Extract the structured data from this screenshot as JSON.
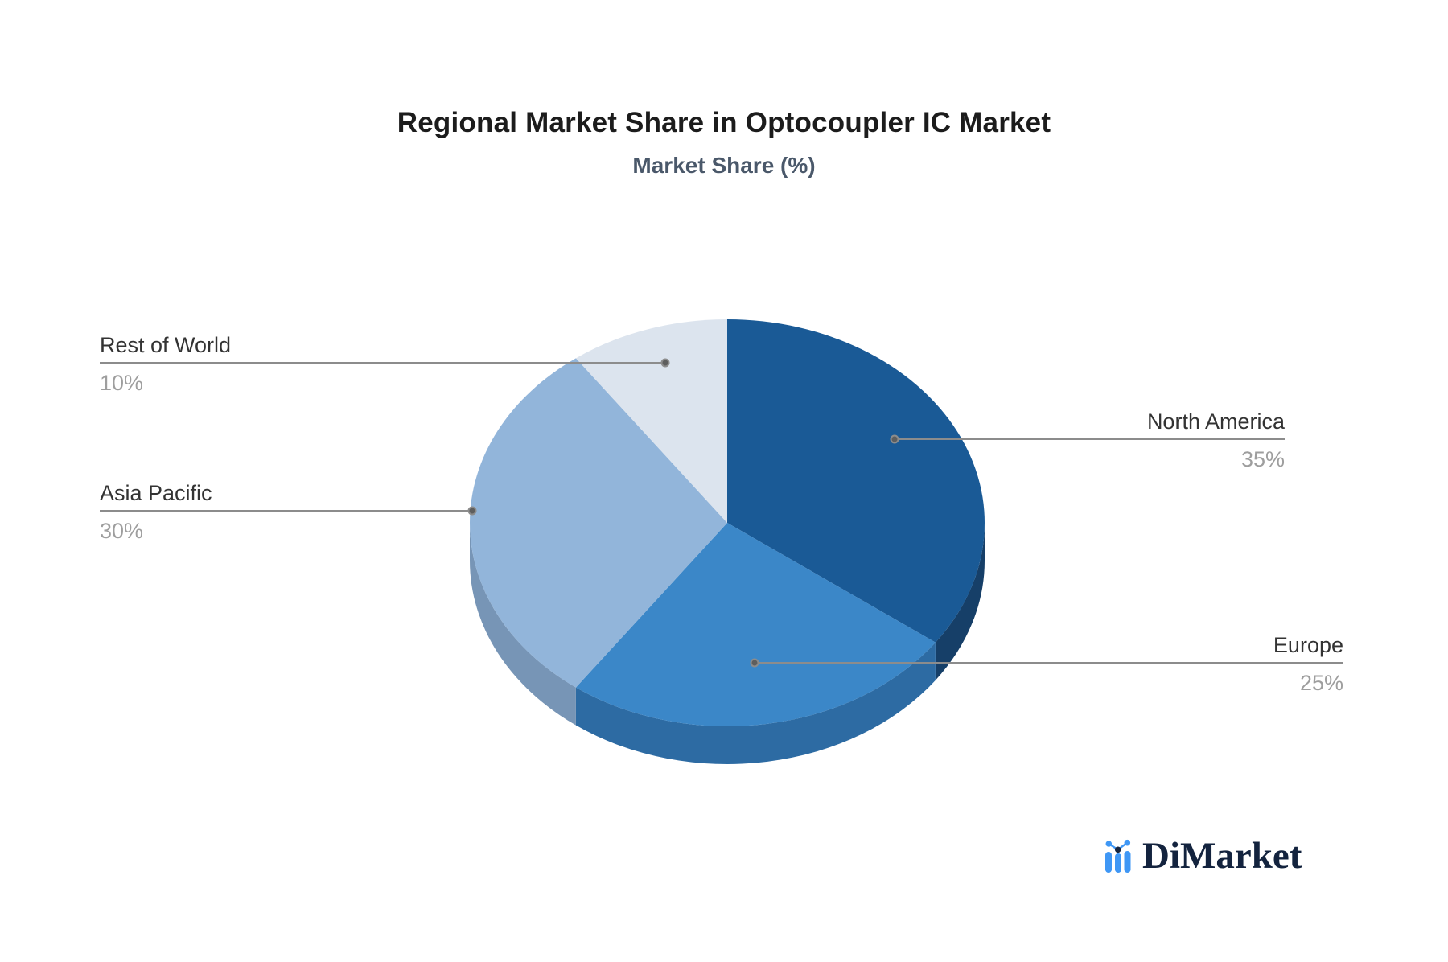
{
  "header": {
    "title": "Regional Market Share in Optocoupler IC Market",
    "subtitle": "Market Share (%)"
  },
  "chart_data": {
    "type": "pie",
    "style": "3d",
    "title": "Regional Market Share in Optocoupler IC Market",
    "subtitle": "Market Share (%)",
    "direction": "clockwise",
    "start_angle_deg_clockwise_from_top": 0,
    "labels": [
      "North America",
      "Europe",
      "Asia Pacific",
      "Rest of World"
    ],
    "values": [
      35,
      25,
      30,
      10
    ],
    "value_labels": [
      "35%",
      "25%",
      "30%",
      "10%"
    ],
    "slice_colors_top": [
      "#1a5a96",
      "#3b87c8",
      "#92b5da",
      "#dce4ee"
    ],
    "slice_colors_side": [
      "#163f68",
      "#2d6ba3",
      "#7795b6",
      "#c3cedd"
    ],
    "leader_line_color": "#8c8c8c",
    "leader_dot_color": "#5e5e5e",
    "label_text_color": "#333333",
    "percent_text_color": "#9e9e9e",
    "legend": "none",
    "label_layout": "outside-with-leader-lines"
  },
  "logo": {
    "text": "DiMarket",
    "icon": "bar-line-chart-icon",
    "icon_color": "#3f97f5",
    "icon_accent_color": "#16243e",
    "text_color": "#13233e"
  }
}
